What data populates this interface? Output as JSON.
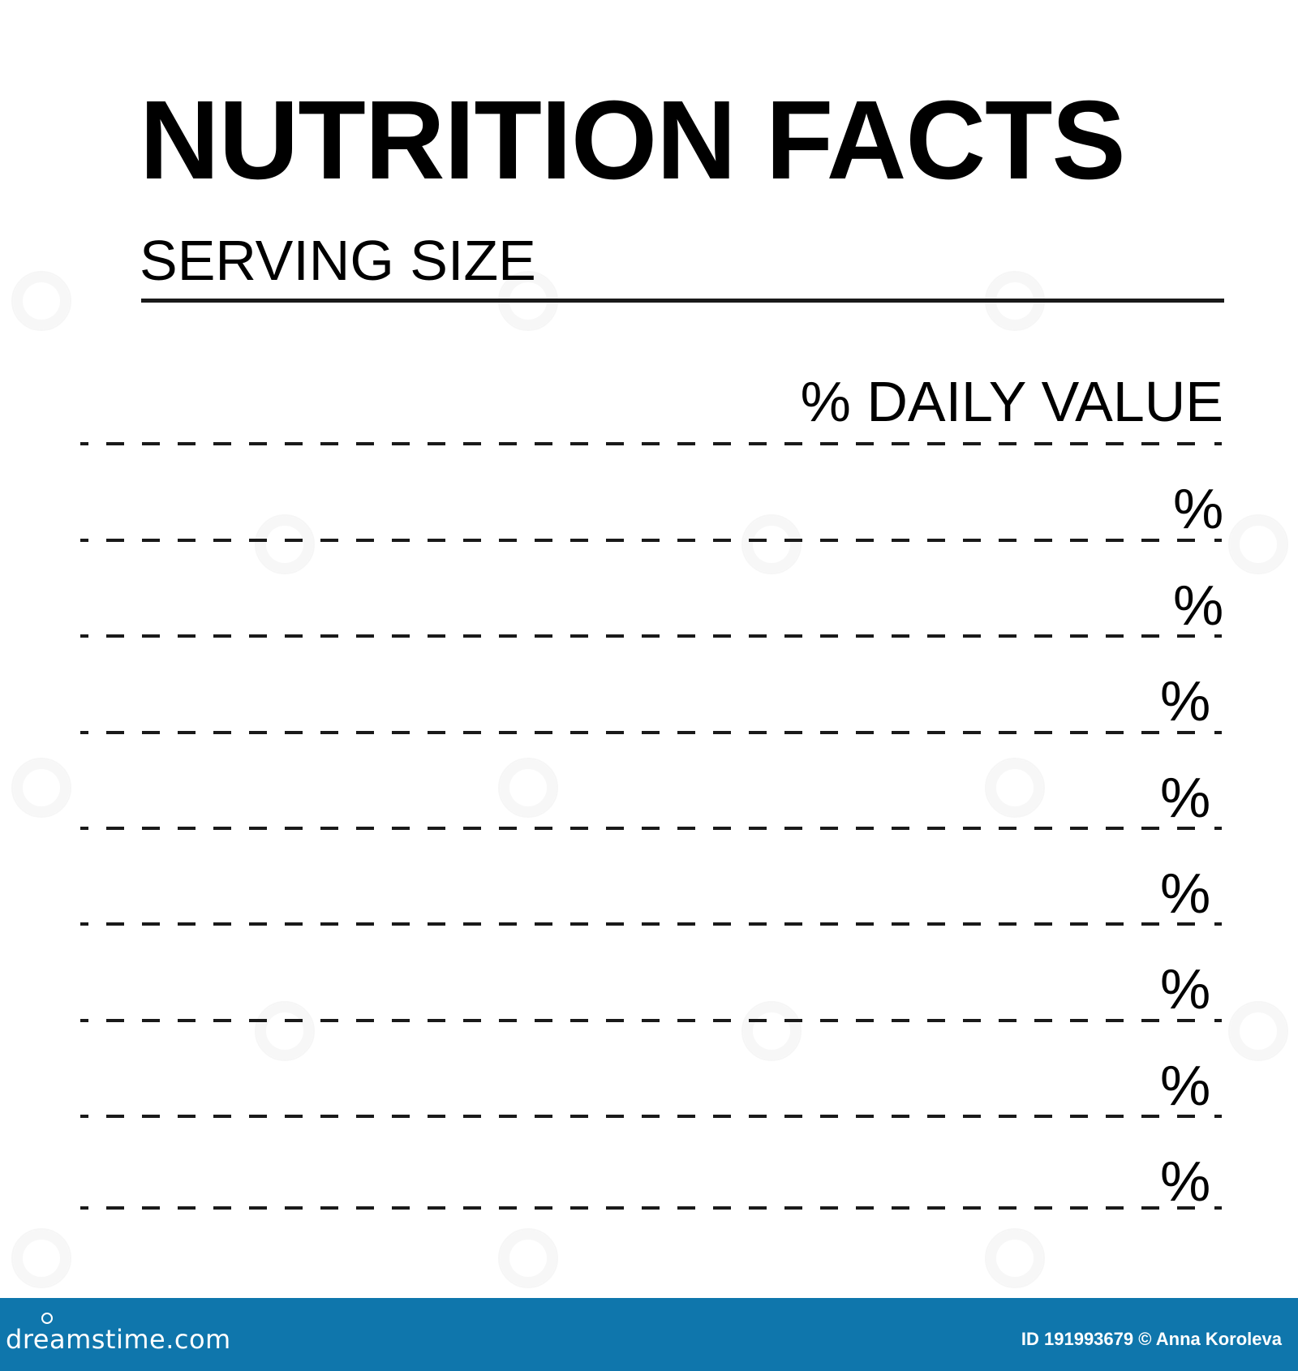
{
  "label": {
    "title": "NUTRITION FACTS",
    "serving_size_label": "SERVING SIZE",
    "daily_value_header": "% DAILY VALUE",
    "rows": [
      {
        "name": "",
        "percent": "%"
      },
      {
        "name": "",
        "percent": "%"
      },
      {
        "name": "",
        "percent": "%"
      },
      {
        "name": "",
        "percent": "%"
      },
      {
        "name": "",
        "percent": "%"
      },
      {
        "name": "",
        "percent": "%"
      },
      {
        "name": "",
        "percent": "%"
      },
      {
        "name": "",
        "percent": "%"
      }
    ]
  },
  "footer": {
    "brand": "dreamstime.com",
    "credit": "ID 191993679 © Anna Koroleva",
    "background_color": "#0f76ac"
  }
}
